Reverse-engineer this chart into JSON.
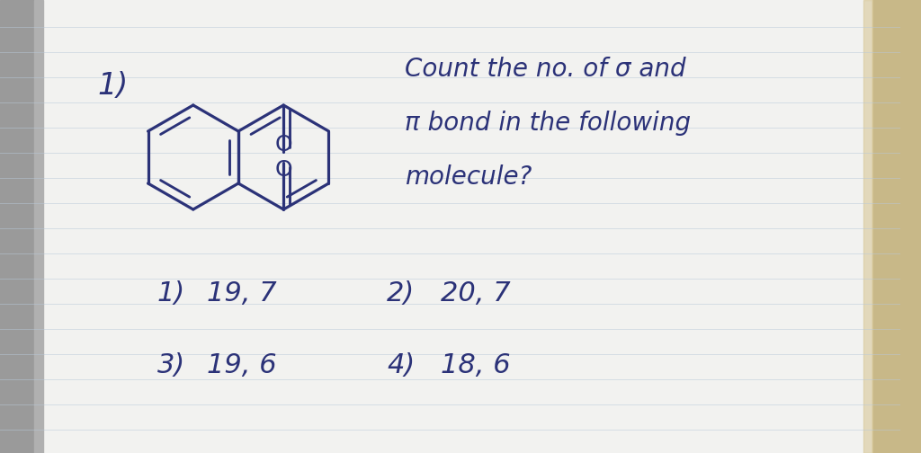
{
  "bg_color": "#e8e8e8",
  "paper_color": "#f2f2f0",
  "ink_color": "#2b3278",
  "q_number": "1)",
  "line1": "Count the no. of σ and",
  "line2": "π bond in the following",
  "line3": "molecule?",
  "opt1_label": "1)",
  "opt1_val": "19, 7",
  "opt2_label": "2)",
  "opt2_val": "20, 7",
  "opt3_label": "3)",
  "opt3_val": "19, 6",
  "opt4_label": "4)",
  "opt4_val": "18, 6",
  "notebook_line_color": "#b8c8d8",
  "right_edge_color": "#c8b888",
  "left_edge_color": "#888888"
}
